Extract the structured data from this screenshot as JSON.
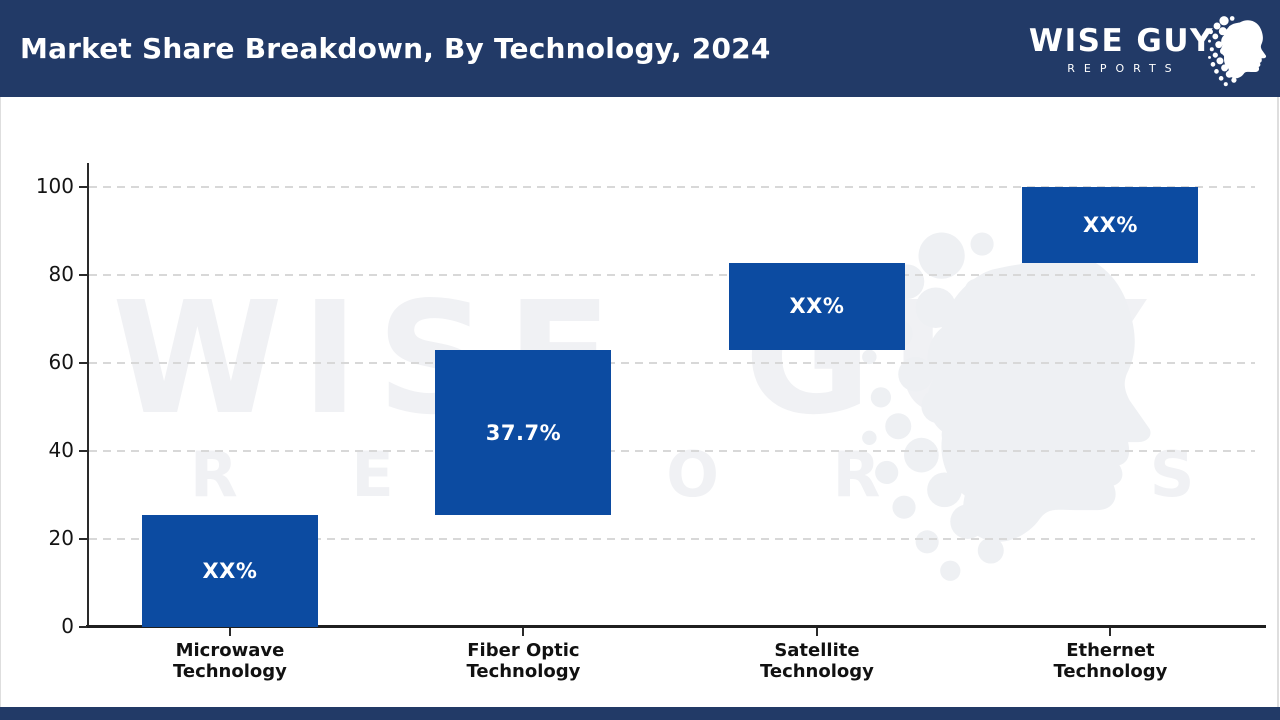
{
  "header": {
    "title": "Market Share Breakdown, By Technology, 2024",
    "logo": {
      "line1": "WISE GUY",
      "line2": "REPORTS"
    }
  },
  "watermark": {
    "line1": "WISE GUY",
    "line2": "R E P O R T S"
  },
  "colors": {
    "header_bg": "#223A67",
    "footer_bg": "#223A67",
    "bar": "#0C4BA1",
    "grid": "#D8D8D8",
    "axis": "#2A2A2A",
    "bar_label_text": "#FFFFFF",
    "tick_text": "#141414",
    "watermark": "#F0F1F4"
  },
  "chart_data": {
    "type": "bar",
    "variant": "waterfall",
    "title": "Market Share Breakdown, By Technology, 2024",
    "xlabel": "",
    "ylabel": "",
    "ylim": [
      0,
      100
    ],
    "yticks": [
      0,
      20,
      40,
      60,
      80,
      100
    ],
    "grid": "horizontal-dashed",
    "legend": "none",
    "categories": [
      [
        "Microwave",
        "Technology"
      ],
      [
        "Fiber Optic",
        "Technology"
      ],
      [
        "Satellite",
        "Technology"
      ],
      [
        "Ethernet",
        "Technology"
      ]
    ],
    "segments": [
      {
        "category": "Microwave Technology",
        "start": 0,
        "end": 25.4,
        "label": "XX%"
      },
      {
        "category": "Fiber Optic Technology",
        "start": 25.4,
        "end": 63,
        "label": "37.7%"
      },
      {
        "category": "Satellite Technology",
        "start": 63,
        "end": 82.8,
        "label": "XX%"
      },
      {
        "category": "Ethernet Technology",
        "start": 82.8,
        "end": 100,
        "label": "XX%"
      }
    ]
  }
}
